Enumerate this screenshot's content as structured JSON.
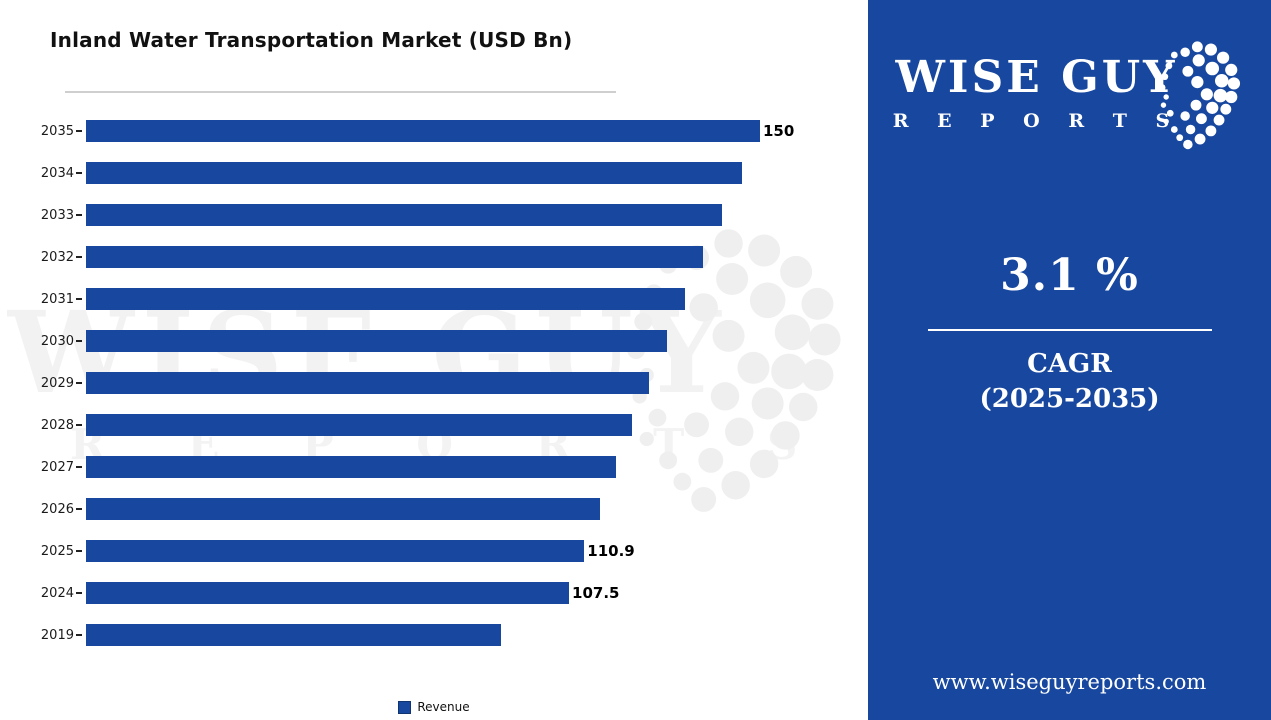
{
  "chart": {
    "title": "Inland Water Transportation Market (USD Bn)",
    "legend": "Revenue"
  },
  "chart_data": {
    "type": "bar",
    "orientation": "horizontal",
    "title": "Inland Water Transportation Market (USD Bn)",
    "series_name": "Revenue",
    "categories": [
      "2035",
      "2034",
      "2033",
      "2032",
      "2031",
      "2030",
      "2029",
      "2028",
      "2027",
      "2026",
      "2025",
      "2024",
      "2019"
    ],
    "values": [
      150,
      146.0,
      141.6,
      137.3,
      133.2,
      129.2,
      125.3,
      121.5,
      117.9,
      114.3,
      110.9,
      107.5,
      92.4
    ],
    "data_labels": [
      "150",
      "",
      "",
      "",
      "",
      "",
      "",
      "",
      "",
      "",
      "110.9",
      "107.5",
      ""
    ],
    "xlim": [
      0,
      150
    ],
    "bar_color": "#17479e",
    "grid": false,
    "legend_position": "bottom"
  },
  "brand": {
    "logo_line1": "WISE GUY",
    "logo_line2": "R E P O R T S",
    "cagr_value": "3.1 %",
    "cagr_label_line1": "CAGR",
    "cagr_label_line2": "(2025-2035)",
    "website": "www.wiseguyreports.com",
    "panel_color": "#17479e"
  },
  "watermark": {
    "line1": "WISE GUY",
    "line2": "R E P O R T S"
  }
}
